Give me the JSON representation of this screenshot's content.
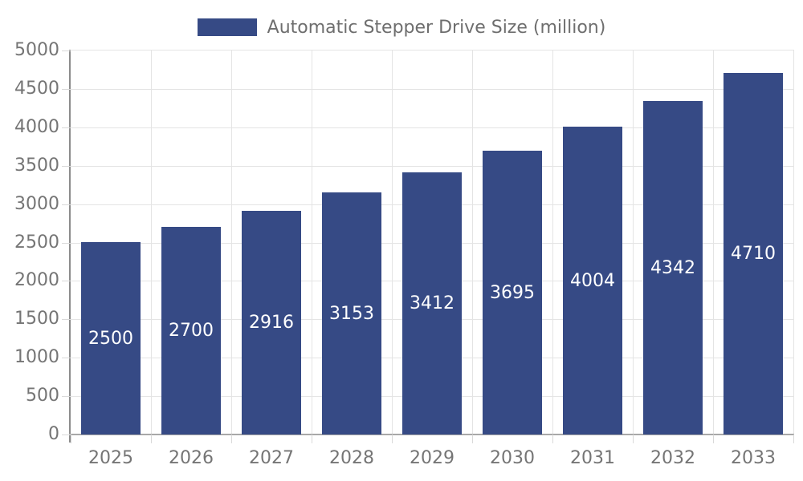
{
  "legend": {
    "label": "Automatic Stepper Drive Size (million)"
  },
  "chart_data": {
    "type": "bar",
    "title": "Automatic Stepper Drive Size (million)",
    "series_name": "Automatic Stepper Drive Size (million)",
    "categories": [
      "2025",
      "2026",
      "2027",
      "2028",
      "2029",
      "2030",
      "2031",
      "2032",
      "2033"
    ],
    "values": [
      2500,
      2700,
      2916,
      3153,
      3412,
      3695,
      4004,
      4342,
      4710
    ],
    "value_labels": [
      "2500",
      "2700",
      "2916",
      "3153",
      "3412",
      "3695",
      "4004",
      "4342",
      "4710"
    ],
    "xlabel": "",
    "ylabel": "",
    "ylim": [
      0,
      5000
    ],
    "ytick_step": 500,
    "ytick_labels": [
      "0",
      "500",
      "1000",
      "1500",
      "2000",
      "2500",
      "3000",
      "3500",
      "4000",
      "4500",
      "5000"
    ],
    "grid": true,
    "legend_position": "top",
    "colors": {
      "bar": "#364a85",
      "bar_label": "#ffffff",
      "axis_text": "#757575",
      "legend_text": "#6e6e6e",
      "gridline": "#e4e4e4",
      "y_axis_line": "#8c8c8c",
      "x_axis_line": "#a8a8a8",
      "tick": "#d9d9d9",
      "background": "#ffffff"
    }
  }
}
